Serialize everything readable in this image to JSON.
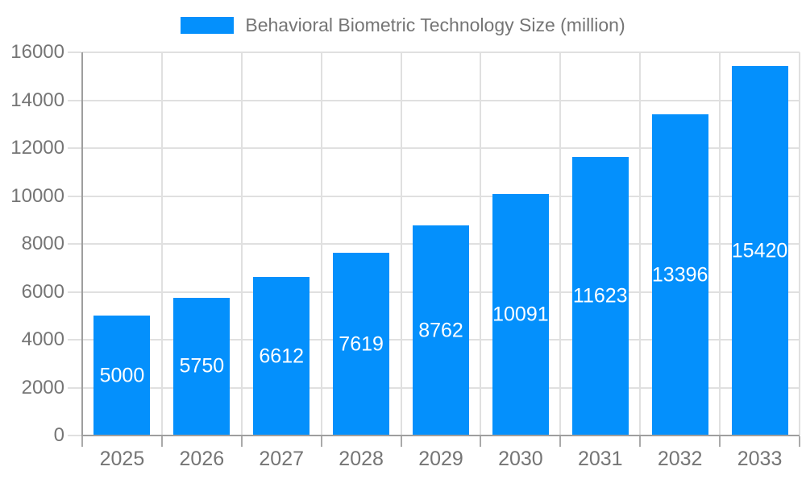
{
  "chart_data": {
    "type": "bar",
    "title": "Behavioral Biometric Technology Size (million)",
    "categories": [
      "2025",
      "2026",
      "2027",
      "2028",
      "2029",
      "2030",
      "2031",
      "2032",
      "2033"
    ],
    "values": [
      5000,
      5750,
      6612,
      7619,
      8762,
      10091,
      11623,
      13396,
      15420
    ],
    "xlabel": "",
    "ylabel": "",
    "ylim": [
      0,
      16000
    ],
    "yticks": [
      0,
      2000,
      4000,
      6000,
      8000,
      10000,
      12000,
      14000,
      16000
    ],
    "grid": "horizontal-and-vertical",
    "legend_position": "top-center",
    "value_label_position": "inside-center"
  },
  "colors": {
    "bar": "#0490FC",
    "bar_label_text": "#FFFFFF",
    "axis_line": "#9E9E9E",
    "gridline": "#E0E0E0",
    "tick_mark": "#AAAAAA",
    "tick_text": "#757575",
    "legend_text": "#757575",
    "background": "#FFFFFF"
  }
}
